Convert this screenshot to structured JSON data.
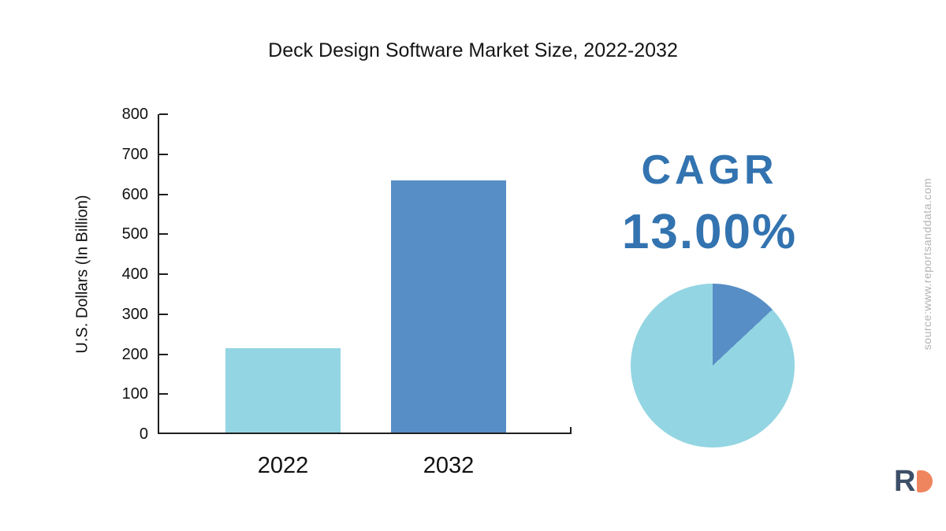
{
  "title": "Deck Design Software Market Size, 2022-2032",
  "source_label": "source:www.reportsanddata.com",
  "cagr": {
    "label": "CAGR",
    "value": "13.00%",
    "color": "#3273b0"
  },
  "logo": {
    "letter_r": "R",
    "letter_d": "D"
  },
  "colors": {
    "bar_2022": "#93d5e2",
    "bar_2032": "#588ec6",
    "axis": "#1f1f1f",
    "text": "#111111",
    "cagr_text": "#3273b0",
    "source_text": "#b3b3b3",
    "logo_navy": "#3d4e68",
    "logo_orange": "#ef855f"
  },
  "chart_data": [
    {
      "type": "bar",
      "title": "Deck Design Software Market Size, 2022-2032",
      "categories": [
        "2022",
        "2032"
      ],
      "values": [
        210,
        630
      ],
      "xlabel": "",
      "ylabel": "U.S. Dollars (In Billion)",
      "ylim": [
        0,
        800
      ],
      "yticks": [
        0,
        100,
        200,
        300,
        400,
        500,
        600,
        700,
        800
      ],
      "bar_colors": [
        "#93d5e2",
        "#588ec6"
      ],
      "grid": false,
      "legend": false
    },
    {
      "type": "pie",
      "title": "CAGR 13.00%",
      "slices": [
        {
          "label": "CAGR",
          "value": 13,
          "color": "#588ec6"
        },
        {
          "label": "",
          "value": 87,
          "color": "#93d5e2"
        }
      ],
      "start_angle_deg": 0,
      "direction": "clockwise",
      "legend_position": "none"
    }
  ]
}
